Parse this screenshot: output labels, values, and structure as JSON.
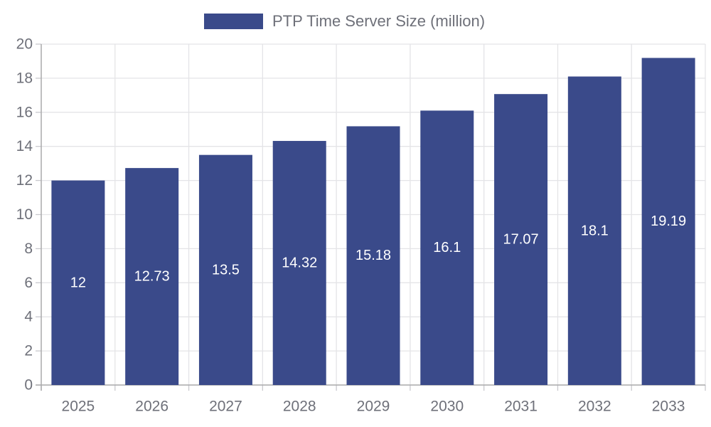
{
  "chart_data": {
    "type": "bar",
    "title": "",
    "xlabel": "",
    "ylabel": "",
    "legend": {
      "label": "PTP Time Server Size (million)",
      "position": "top-center"
    },
    "categories": [
      "2025",
      "2026",
      "2027",
      "2028",
      "2029",
      "2030",
      "2031",
      "2032",
      "2033"
    ],
    "series": [
      {
        "name": "PTP Time Server Size (million)",
        "values": [
          12,
          12.73,
          13.5,
          14.32,
          15.18,
          16.1,
          17.07,
          18.1,
          19.19
        ]
      }
    ],
    "value_labels": [
      "12",
      "12.73",
      "13.5",
      "14.32",
      "15.18",
      "16.1",
      "17.07",
      "18.1",
      "19.19"
    ],
    "ylim": [
      0,
      20
    ],
    "y_tick_step": 2,
    "y_ticks": [
      "0",
      "2",
      "4",
      "6",
      "8",
      "10",
      "12",
      "14",
      "16",
      "18",
      "20"
    ],
    "grid": true,
    "legend_visible": true,
    "colors": {
      "bar": "#3A4A8A",
      "value_label": "#FFFFFF",
      "axis_label": "#6E7079",
      "legend_text": "#6E7079",
      "gridline": "#E4E4E7",
      "axis_line": "#AAAAAC",
      "tick": "#C9C9CE",
      "background": "#FFFFFF"
    }
  }
}
